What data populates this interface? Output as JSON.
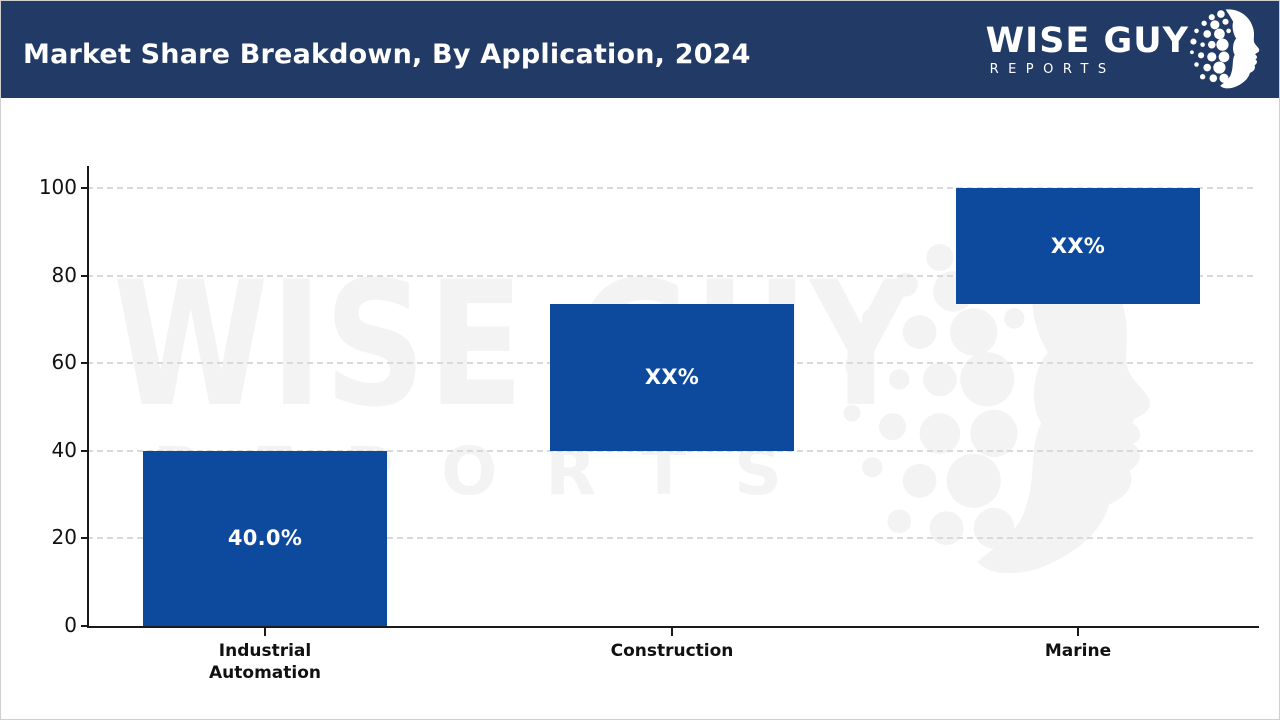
{
  "header": {
    "title": "Market Share Breakdown, By Application, 2024",
    "bg_color": "#213a66",
    "logo_line1": "WISE GUY",
    "logo_line2": "REPORTS"
  },
  "watermark": {
    "line1": "WISE GUY",
    "line2": "REPORTS"
  },
  "chart_data": {
    "type": "bar",
    "subtype": "waterfall",
    "title": "Market Share Breakdown, By Application, 2024",
    "categories": [
      "Industrial Automation",
      "Construction",
      "Marine"
    ],
    "values": [
      40.0,
      33.5,
      26.5
    ],
    "bars": [
      {
        "category": "Industrial Automation",
        "start": 0,
        "end": 40,
        "value_label": "40.0%"
      },
      {
        "category": "Construction",
        "start": 40,
        "end": 73.5,
        "value_label": "XX%"
      },
      {
        "category": "Marine",
        "start": 73.5,
        "end": 100,
        "value_label": "XX%"
      }
    ],
    "ylim": [
      0,
      100
    ],
    "yticks": [
      0,
      20,
      40,
      60,
      80,
      100
    ],
    "xlabel": "",
    "ylabel": "",
    "grid": "horizontal-dashed",
    "legend": "none",
    "bar_color": "#0d4a9d",
    "bar_label_color": "#ffffff",
    "axis_color": "#1a1a1a",
    "grid_color": "#d9d9d9"
  }
}
